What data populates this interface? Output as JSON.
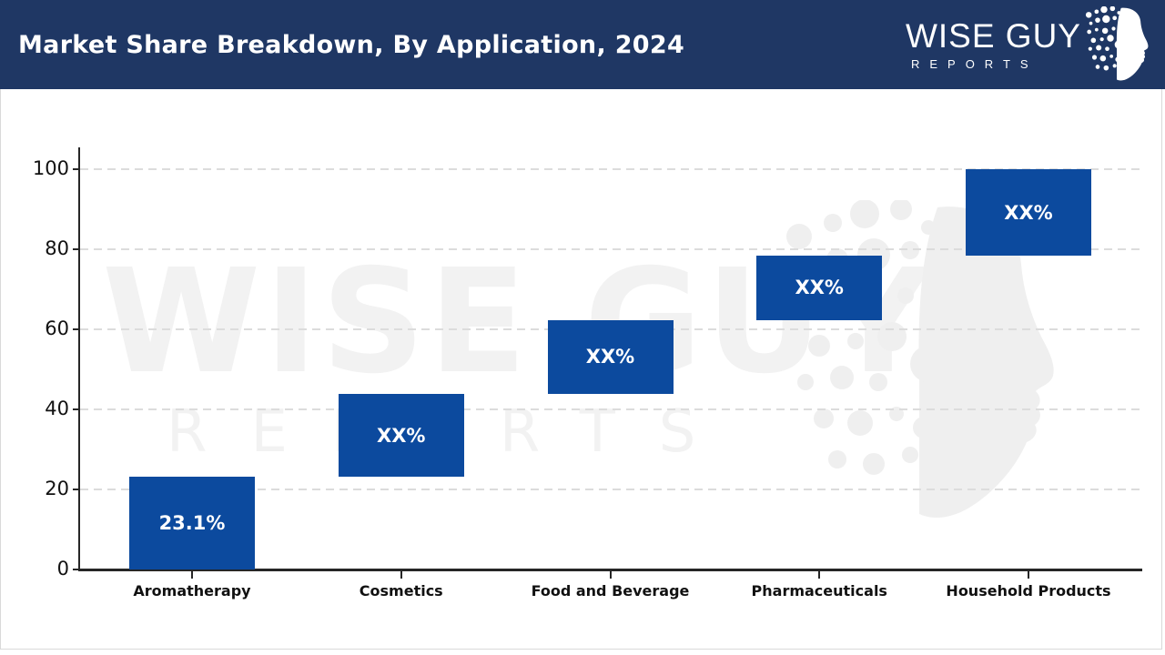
{
  "header": {
    "title": "Market Share Breakdown, By Application, 2024",
    "bg_color": "#1f3764",
    "logo": {
      "line1": "WISE GUY",
      "line2": "REPORTS"
    }
  },
  "watermark": {
    "line1": "WISE GUY",
    "line2": "REPORTS"
  },
  "chart_data": {
    "type": "bar",
    "subtype": "waterfall",
    "title": "Market Share Breakdown, By Application, 2024",
    "categories": [
      "Aromatherapy",
      "Cosmetics",
      "Food and Beverage",
      "Pharmaceuticals",
      "Household Products"
    ],
    "bars": [
      {
        "category": "Aromatherapy",
        "start": 0,
        "end": 23.1,
        "label": "23.1%"
      },
      {
        "category": "Cosmetics",
        "start": 23.1,
        "end": 43.9,
        "label": "XX%"
      },
      {
        "category": "Food and Beverage",
        "start": 43.9,
        "end": 62.3,
        "label": "XX%"
      },
      {
        "category": "Pharmaceuticals",
        "start": 62.3,
        "end": 78.4,
        "label": "XX%"
      },
      {
        "category": "Household Products",
        "start": 78.4,
        "end": 100,
        "label": "XX%"
      }
    ],
    "yticks": [
      0,
      20,
      40,
      60,
      80,
      100
    ],
    "ylim": [
      0,
      100
    ],
    "xlabel": "",
    "ylabel": "",
    "legend": "none",
    "grid": {
      "axis": "y",
      "style": "dashed",
      "color": "#dcdcdc"
    },
    "bar_color": "#0c4a9e",
    "bar_label_color": "#ffffff"
  }
}
